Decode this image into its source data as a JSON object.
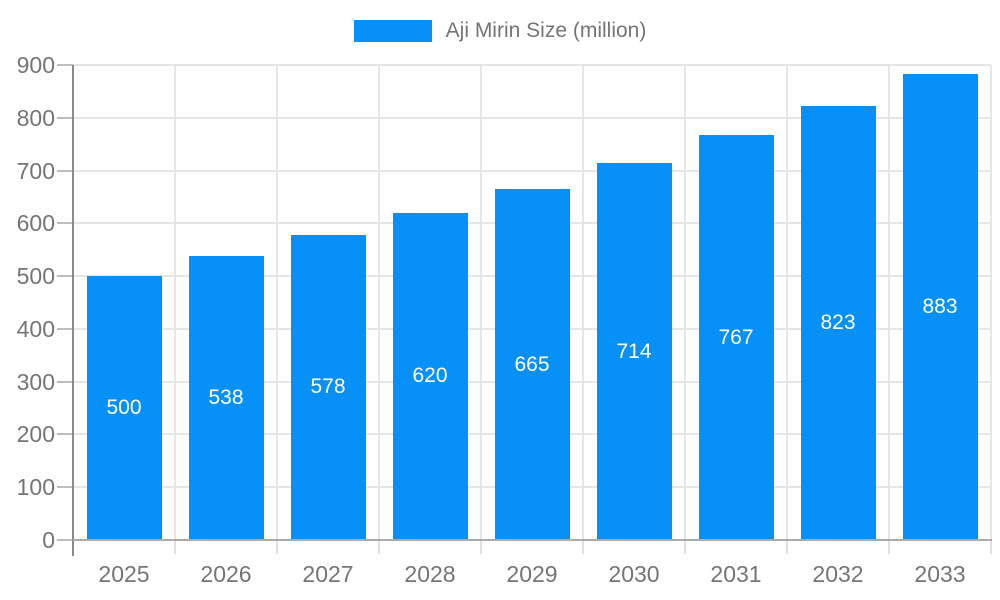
{
  "legend": {
    "label": "Aji Mirin Size (million)"
  },
  "chart_data": {
    "type": "bar",
    "title": "",
    "xlabel": "",
    "ylabel": "",
    "categories": [
      "2025",
      "2026",
      "2027",
      "2028",
      "2029",
      "2030",
      "2031",
      "2032",
      "2033"
    ],
    "values": [
      500,
      538,
      578,
      620,
      665,
      714,
      767,
      823,
      883
    ],
    "series": [
      {
        "name": "Aji Mirin Size (million)",
        "values": [
          500,
          538,
          578,
          620,
          665,
          714,
          767,
          823,
          883
        ]
      }
    ],
    "ylim": [
      0,
      900
    ],
    "ytick_step": 100,
    "ytick_labels": [
      "0",
      "100",
      "200",
      "300",
      "400",
      "500",
      "600",
      "700",
      "800",
      "900"
    ],
    "grid": true,
    "legend_position": "top-center",
    "value_labels": "centered inside bars",
    "colors": {
      "bar": "#0890f9",
      "axis_text": "#757575",
      "bar_label_text": "#ffffff",
      "gridline": "#e6e6e6",
      "axis_line": "#8a8a8a",
      "baseline": "#ababab",
      "background": "#ffffff"
    }
  }
}
